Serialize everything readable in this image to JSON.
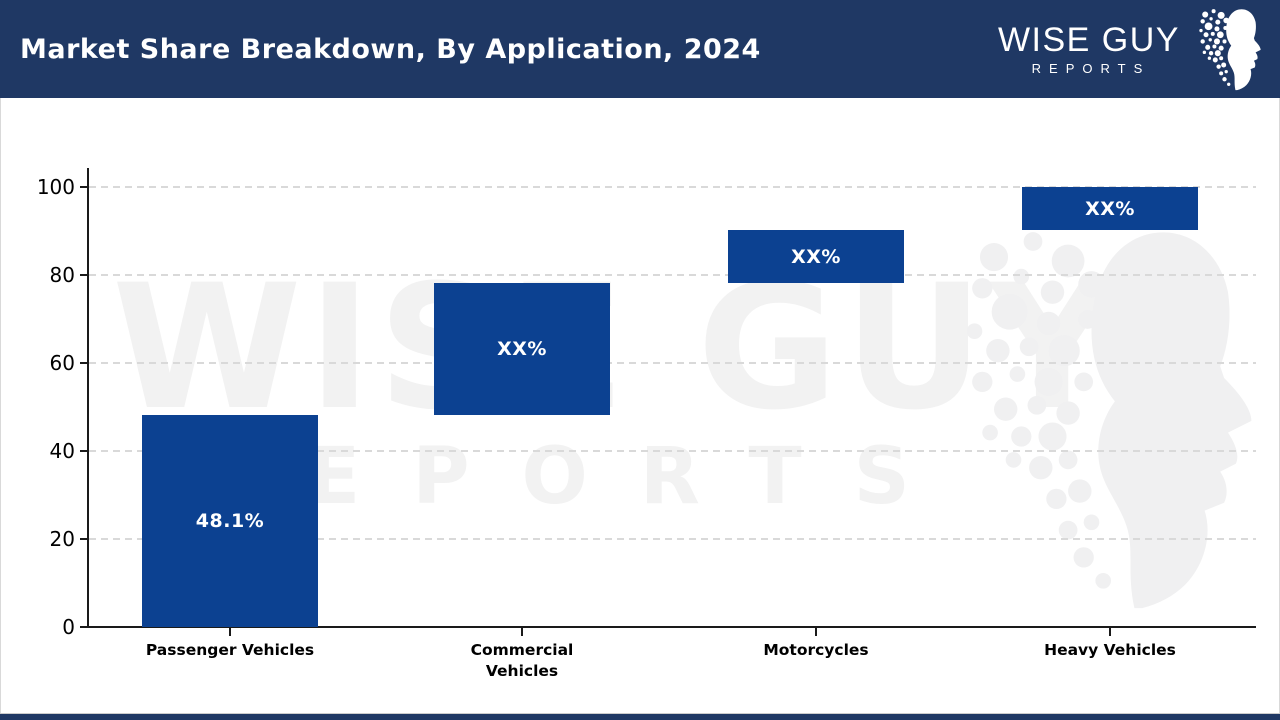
{
  "header": {
    "title": "Market Share Breakdown, By Application, 2024",
    "logo": {
      "line1": "WISE GUY",
      "line2": "REPORTS"
    }
  },
  "watermark": {
    "line1": "WISE GUY",
    "line2": "REPORTS"
  },
  "footer": {},
  "colors": {
    "header_bg": "#1f3864",
    "footer_bg": "#1f3864",
    "bar": "#0c4191",
    "grid": "#d9d9d9",
    "axis": "#1a1a1a",
    "tick_text": "#000000",
    "bar_label_text": "#ffffff",
    "watermark": "#f2f2f2",
    "title_text": "#ffffff"
  },
  "chart_data": {
    "type": "bar",
    "subtype": "waterfall-stacked-percent",
    "title": "Market Share Breakdown, By Application, 2024",
    "categories": [
      "Passenger Vehicles",
      "Commercial Vehicles",
      "Motorcycles",
      "Heavy Vehicles"
    ],
    "category_label_lines": [
      [
        "Passenger Vehicles"
      ],
      [
        "Commercial",
        "Vehicles"
      ],
      [
        "Motorcycles"
      ],
      [
        "Heavy Vehicles"
      ]
    ],
    "segments": [
      {
        "category": "Passenger Vehicles",
        "start": 0,
        "end": 48.1,
        "value": 48.1,
        "label": "48.1%"
      },
      {
        "category": "Commercial Vehicles",
        "start": 48.1,
        "end": 78.2,
        "value": 30.1,
        "label": "XX%"
      },
      {
        "category": "Motorcycles",
        "start": 78.2,
        "end": 90.2,
        "value": 12.0,
        "label": "XX%"
      },
      {
        "category": "Heavy Vehicles",
        "start": 90.2,
        "end": 100,
        "value": 9.8,
        "label": "XX%"
      }
    ],
    "yticks": [
      0,
      20,
      40,
      60,
      80,
      100
    ],
    "ylim": [
      0,
      105
    ],
    "xlabel": "",
    "ylabel": "",
    "grid": "horizontal-dashed",
    "legend": "none"
  }
}
